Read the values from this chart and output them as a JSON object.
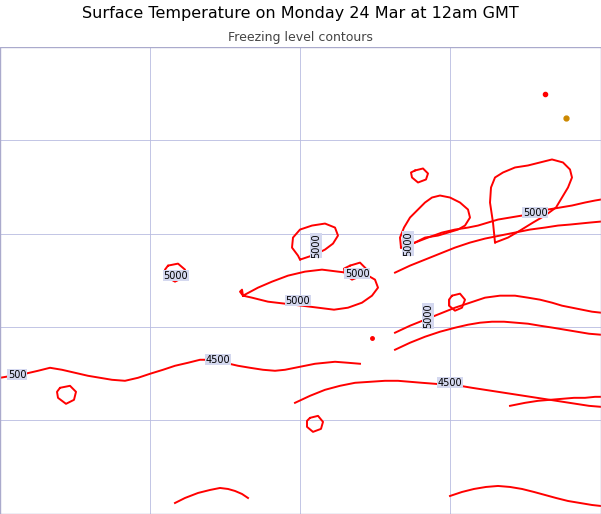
{
  "title": "Surface Temperature on Monday 24 Mar at 12am GMT",
  "subtitle": "Freezing level contours",
  "bg_color": "#ffffff",
  "map_bg": "#d4d8ef",
  "grid_color": "#b8bce0",
  "contour_color": "#ff0000",
  "title_fontsize": 11.5,
  "subtitle_fontsize": 9,
  "figsize": [
    6.01,
    5.14
  ],
  "dpi": 100,
  "border_color": "#aaaacc"
}
